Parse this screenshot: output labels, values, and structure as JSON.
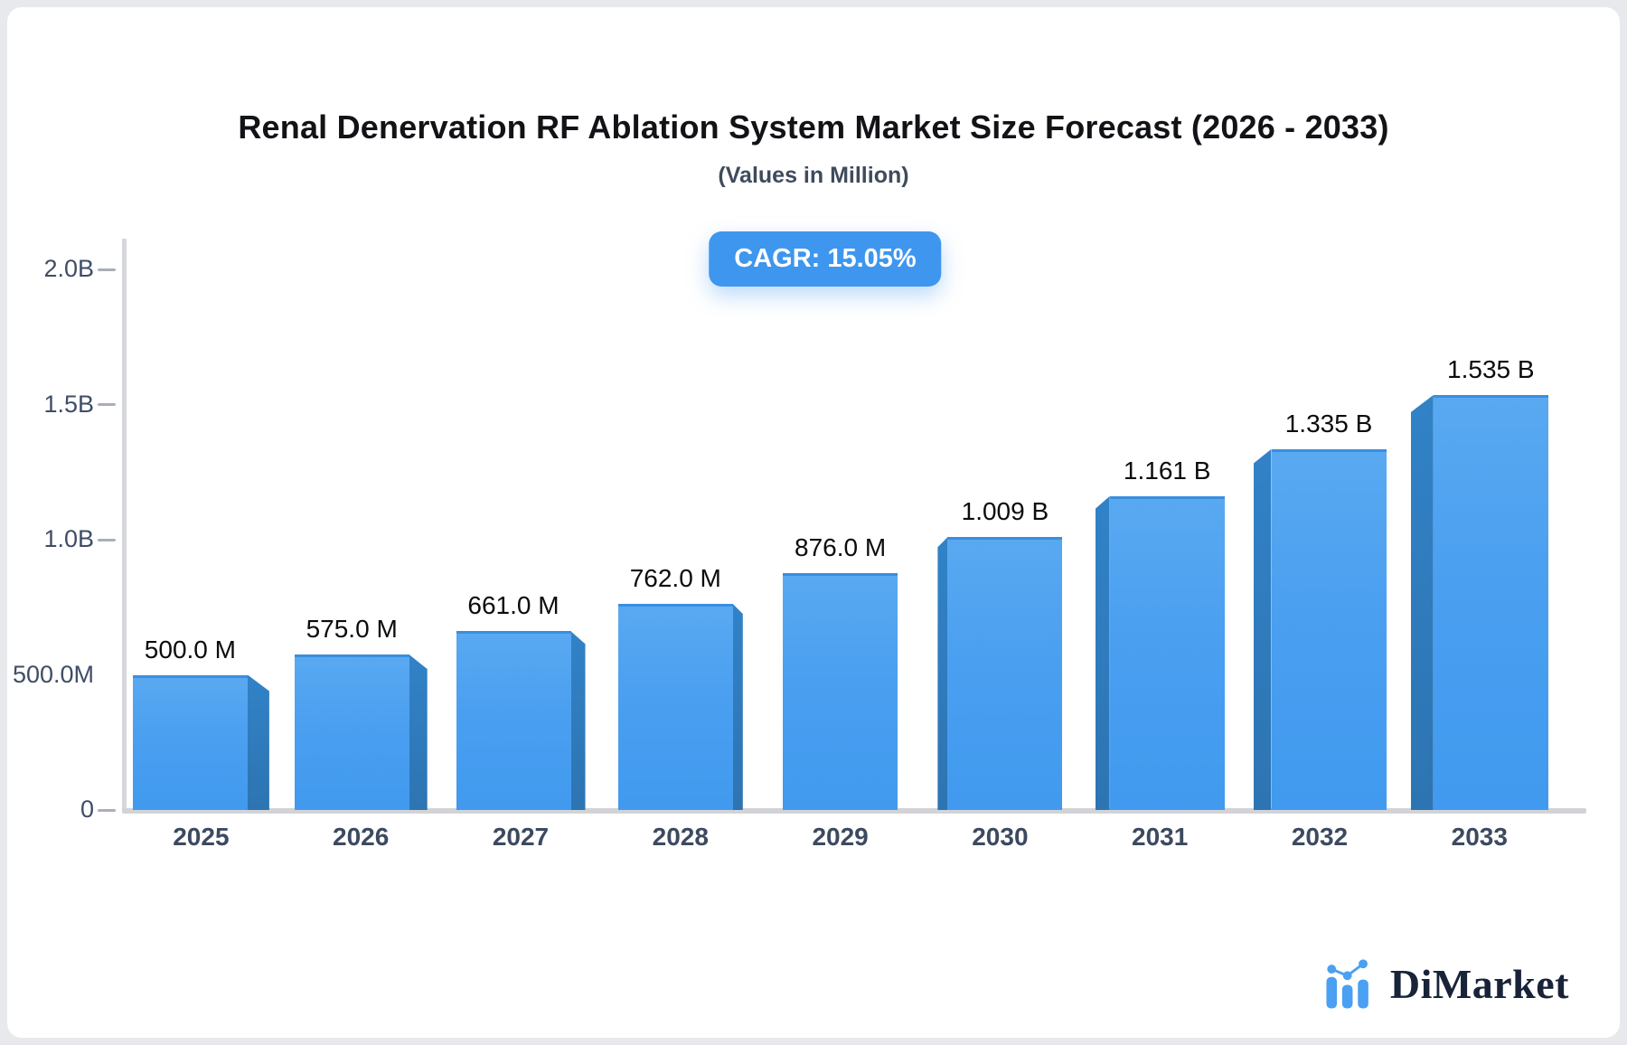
{
  "title": "Renal Denervation RF Ablation System Market Size Forecast (2026 - 2033)",
  "subtitle": "(Values in Million)",
  "cagr_badge": "CAGR: 15.05%",
  "logo": {
    "text": "DiMarket",
    "icon": "mini-bar-line-chart-icon"
  },
  "chart_data": {
    "type": "bar",
    "title": "Renal Denervation RF Ablation System Market Size Forecast (2026 - 2033)",
    "subtitle": "(Values in Million)",
    "unit": "USD Million",
    "categories": [
      "2025",
      "2026",
      "2027",
      "2028",
      "2029",
      "2030",
      "2031",
      "2032",
      "2033"
    ],
    "values": [
      500,
      575,
      661,
      762,
      876,
      1009,
      1161,
      1335,
      1535
    ],
    "value_labels": [
      "500.0 M",
      "575.0 M",
      "661.0 M",
      "762.0 M",
      "876.0 M",
      "1.009 B",
      "1.161 B",
      "1.335 B",
      "1.535 B"
    ],
    "ylim": [
      0,
      2000
    ],
    "y_ticks": [
      {
        "label": "2.0B",
        "value": 2000,
        "dash": true
      },
      {
        "label": "1.5B",
        "value": 1500,
        "dash": true
      },
      {
        "label": "1.0B",
        "value": 1000,
        "dash": true
      },
      {
        "label": "500.0M",
        "value": 500,
        "dash": false
      },
      {
        "label": "0",
        "value": 0,
        "dash": true
      }
    ],
    "grid": false,
    "legend": "none",
    "bar_face_color": "#4a9ff0",
    "bar_side_color": "#2e77b5",
    "badge_color": "#3e96ee",
    "cagr_percent": 15.05
  }
}
